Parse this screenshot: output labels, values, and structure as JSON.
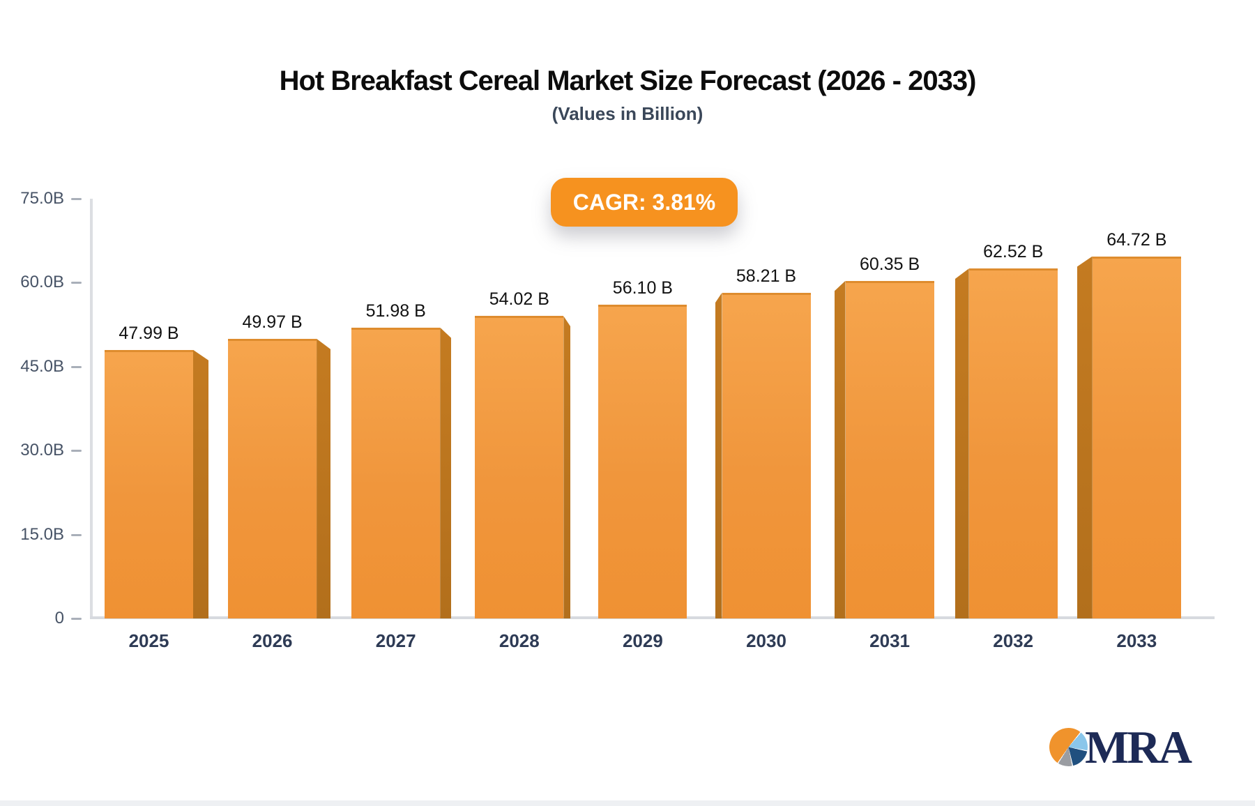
{
  "header": {
    "title": "Hot Breakfast Cereal Market Size Forecast (2026 - 2033)",
    "subtitle": "(Values in Billion)"
  },
  "badge": {
    "label": "CAGR: 3.81%",
    "color": "#F6921F"
  },
  "chart_data": {
    "type": "bar",
    "title": "Hot Breakfast Cereal Market Size Forecast (2026 - 2033)",
    "subtitle": "(Values in Billion)",
    "cagr_pct": 3.81,
    "categories": [
      "2025",
      "2026",
      "2027",
      "2028",
      "2029",
      "2030",
      "2031",
      "2032",
      "2033"
    ],
    "values": [
      47.99,
      49.97,
      51.98,
      54.02,
      56.1,
      58.21,
      60.35,
      62.52,
      64.72
    ],
    "value_labels": [
      "47.99 B",
      "49.97 B",
      "51.98 B",
      "54.02 B",
      "56.10 B",
      "58.21 B",
      "60.35 B",
      "62.52 B",
      "64.72 B"
    ],
    "ylim": [
      0,
      75
    ],
    "yticks": [
      {
        "value": 0,
        "label": "0"
      },
      {
        "value": 15,
        "label": "15.0B"
      },
      {
        "value": 30,
        "label": "30.0B"
      },
      {
        "value": 45,
        "label": "45.0B"
      },
      {
        "value": 60,
        "label": "60.0B"
      },
      {
        "value": 75,
        "label": "75.0B"
      }
    ],
    "grid": false,
    "legend": false,
    "bar_style_3d": true,
    "colors": {
      "bar_front_top": "#F6A54D",
      "bar_front_bottom": "#EF9133",
      "bar_side": "#BC761F",
      "bar_top_edge": "#DE8C2E",
      "accent_badge": "#F6921F"
    }
  },
  "logo": {
    "text": "MRA",
    "pie_colors": {
      "orange": "#F0932C",
      "light_blue": "#8AC6EA",
      "dark_blue": "#20507F",
      "gray": "#9A9DA2"
    }
  }
}
